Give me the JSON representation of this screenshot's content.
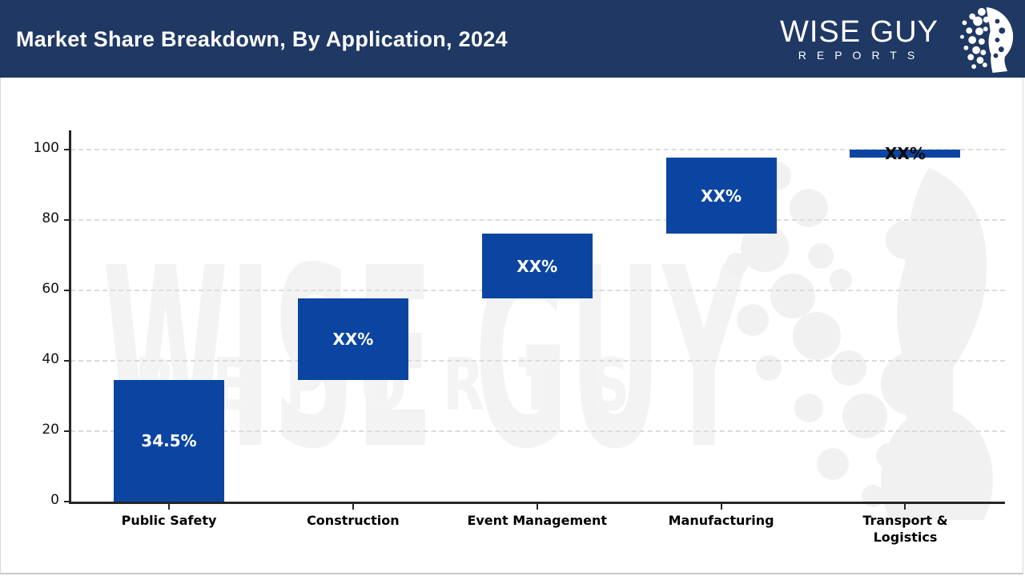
{
  "header": {
    "title": "Market Share Breakdown, By Application, 2024",
    "bg_color": "#1F3864",
    "logo": {
      "line1": "WISE GUY",
      "line2": "REPORTS"
    }
  },
  "watermark": {
    "line1": "WISE GUY",
    "line2": "REPORTS"
  },
  "chart_data": {
    "type": "bar",
    "variant": "waterfall",
    "title": "Market Share Breakdown, By Application, 2024",
    "xlabel": "",
    "ylabel": "",
    "ylim": [
      0,
      105
    ],
    "y_ticks": [
      0,
      20,
      40,
      60,
      80,
      100
    ],
    "grid": "horizontal dashed",
    "bar_color": "#0B45A1",
    "axis_color": "#262626",
    "categories": [
      "Public Safety",
      "Construction",
      "Event Management",
      "Manufacturing",
      "Transport & Logistics"
    ],
    "bars": [
      {
        "category": "Public Safety",
        "start": 0,
        "end": 34.5,
        "value": 34.5,
        "label": "34.5%",
        "label_color": "#ffffff"
      },
      {
        "category": "Construction",
        "start": 34.5,
        "end": 57.7,
        "value": 23.2,
        "label": "XX%",
        "label_color": "#ffffff"
      },
      {
        "category": "Event Management",
        "start": 57.7,
        "end": 76.1,
        "value": 18.4,
        "label": "XX%",
        "label_color": "#ffffff"
      },
      {
        "category": "Manufacturing",
        "start": 76.1,
        "end": 97.7,
        "value": 21.6,
        "label": "XX%",
        "label_color": "#ffffff"
      },
      {
        "category": "Transport & Logistics",
        "start": 97.7,
        "end": 100,
        "value": 2.3,
        "label": "XX%",
        "label_color": "#0a0a0a"
      }
    ]
  }
}
